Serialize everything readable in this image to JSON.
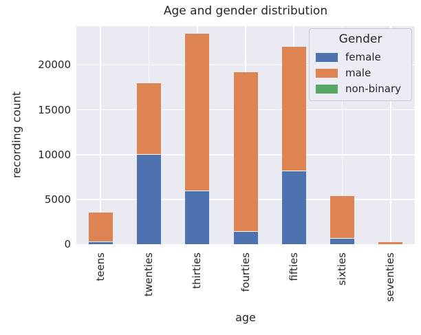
{
  "title": "Age and gender distribution",
  "axes": {
    "xlabel": "age",
    "ylabel": "recording count"
  },
  "legend": {
    "title": "Gender",
    "entries": [
      {
        "label": "female",
        "color": "#4c72b0"
      },
      {
        "label": "male",
        "color": "#dd8452"
      },
      {
        "label": "non-binary",
        "color": "#55a868"
      }
    ]
  },
  "colors": {
    "figure_background": "#ffffff",
    "plot_background": "#eaeaf2",
    "gridline": "#ffffff",
    "text": "#262626",
    "female": "#4c72b0",
    "male": "#dd8452",
    "non_binary": "#55a868"
  },
  "chart_data": {
    "type": "bar",
    "stacked": true,
    "title": "Age and gender distribution",
    "xlabel": "age",
    "ylabel": "recording count",
    "categories": [
      "teens",
      "twenties",
      "thirties",
      "fourties",
      "fifties",
      "sixties",
      "seventies"
    ],
    "series": [
      {
        "name": "female",
        "color": "#4c72b0",
        "values": [
          250,
          10000,
          5900,
          1400,
          8100,
          600,
          0
        ]
      },
      {
        "name": "male",
        "color": "#dd8452",
        "values": [
          3250,
          8000,
          17600,
          17800,
          13900,
          4800,
          200
        ]
      },
      {
        "name": "non-binary",
        "color": "#55a868",
        "values": [
          0,
          0,
          0,
          0,
          0,
          0,
          0
        ]
      }
    ],
    "totals": [
      3500,
      18000,
      23500,
      19200,
      22000,
      5400,
      200
    ],
    "ylim": [
      0,
      24330
    ],
    "yticks": [
      0,
      5000,
      10000,
      15000,
      20000
    ],
    "grid": true,
    "legend_position": "upper right",
    "legend_title": "Gender"
  }
}
